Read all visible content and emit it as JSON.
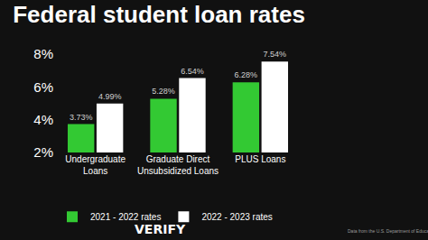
{
  "chart_data": {
    "type": "bar",
    "title": "Federal student loan rates",
    "categories": [
      "Undergraduate Loans",
      "Graduate Direct Unsubsidized Loans",
      "PLUS Loans"
    ],
    "series": [
      {
        "name": "2021 - 2022 rates",
        "color": "#33c933",
        "values": [
          3.73,
          5.28,
          6.28
        ],
        "value_labels": [
          "3.73%",
          "5.28%",
          "6.28%"
        ]
      },
      {
        "name": "2022 - 2023 rates",
        "color": "#ffffff",
        "values": [
          4.99,
          6.54,
          7.54
        ],
        "value_labels": [
          "4.99%",
          "6.54%",
          "7.54%"
        ]
      }
    ],
    "ylim": [
      2,
      8
    ],
    "yticks": [
      {
        "value": 2,
        "label": "2%"
      },
      {
        "value": 4,
        "label": "4%"
      },
      {
        "value": 6,
        "label": "6%"
      },
      {
        "value": 8,
        "label": "8%"
      }
    ],
    "grid": false,
    "legend": "bottom",
    "data_labels": true,
    "annotations": [
      "VERIFY",
      "Data from the U.S. Department of Education"
    ]
  }
}
